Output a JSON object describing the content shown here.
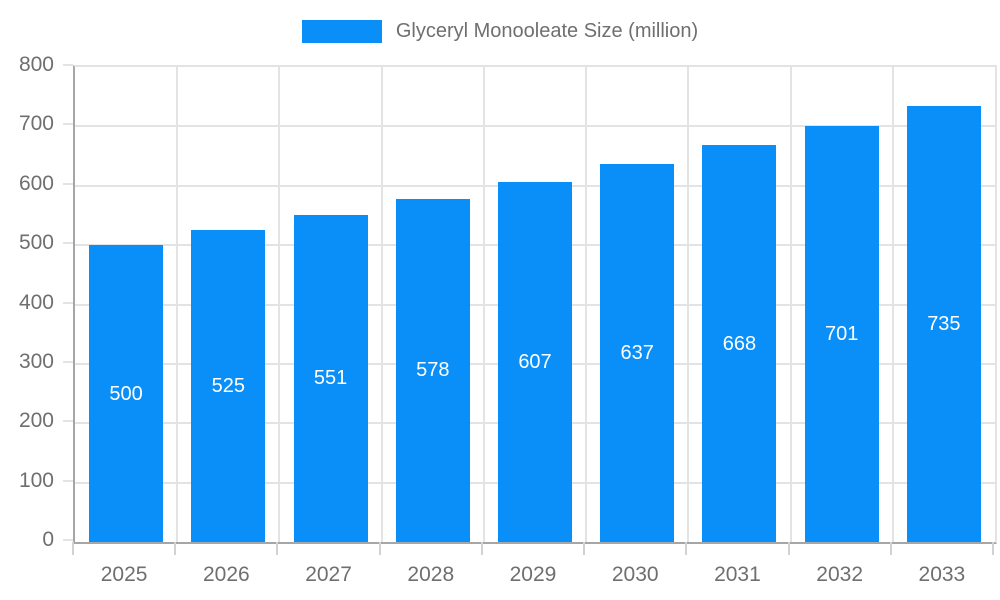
{
  "legend": {
    "label": "Glyceryl Monooleate Size (million)"
  },
  "chart_data": {
    "type": "bar",
    "title": "Glyceryl Monooleate Size (million)",
    "categories": [
      "2025",
      "2026",
      "2027",
      "2028",
      "2029",
      "2030",
      "2031",
      "2032",
      "2033"
    ],
    "values": [
      500,
      525,
      551,
      578,
      607,
      637,
      668,
      701,
      735
    ],
    "bar_labels": [
      "500",
      "525",
      "551",
      "578",
      "607",
      "637",
      "668",
      "701",
      "735"
    ],
    "xlabel": "",
    "ylabel": "",
    "ylim": [
      0,
      800
    ],
    "yticks": [
      0,
      100,
      200,
      300,
      400,
      500,
      600,
      700,
      800
    ],
    "grid": true,
    "legend_position": "top-center",
    "colors": {
      "bar": "#0a8ff8",
      "text": "#6f6f6f",
      "grid": "#e3e3e3",
      "axis": "#a6a6a6",
      "bar_label": "#ffffff",
      "background": "#ffffff"
    }
  }
}
